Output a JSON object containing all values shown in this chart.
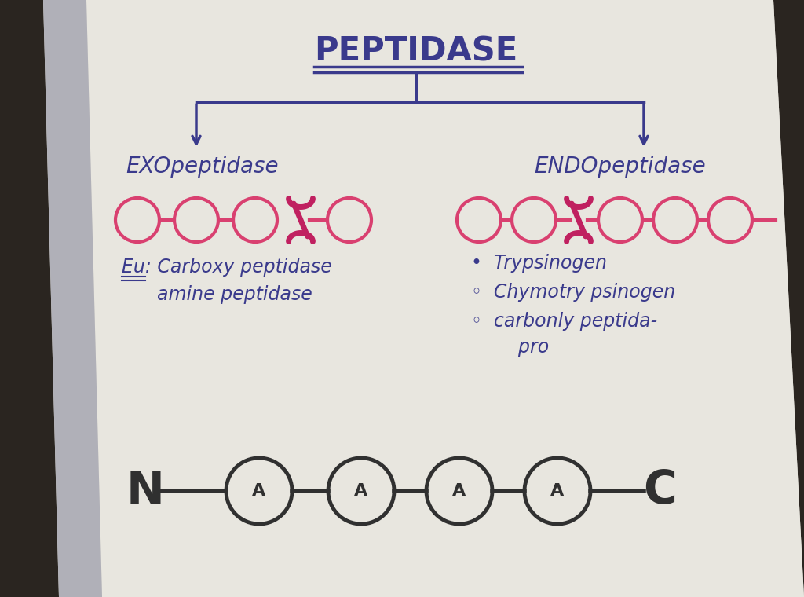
{
  "bg_color": "#2a2520",
  "paper_color": "#e8e5de",
  "title": "PEPTIDASE",
  "title_color": "#3a3a8c",
  "exo_label": "EXOpeptidase",
  "endo_label": "ENDOpeptidase",
  "note_color": "#3a3a8c",
  "circle_color": "#d94070",
  "scissors_color": "#c02060",
  "bottom_line_color": "#303030",
  "bottom_circle_color": "#303030",
  "bottom_text_color": "#303030",
  "tree_color": "#3a3a8c",
  "exo_notes_line1": "Eu: Carboxy peptidase",
  "exo_notes_line2": "      amine peptidase",
  "endo_bullet1": "•  Trypsinogen",
  "endo_bullet2": "◦  Chymotry psinogen",
  "endo_bullet3": "◦  carbonly peptida-",
  "endo_bullet4": "    pro"
}
